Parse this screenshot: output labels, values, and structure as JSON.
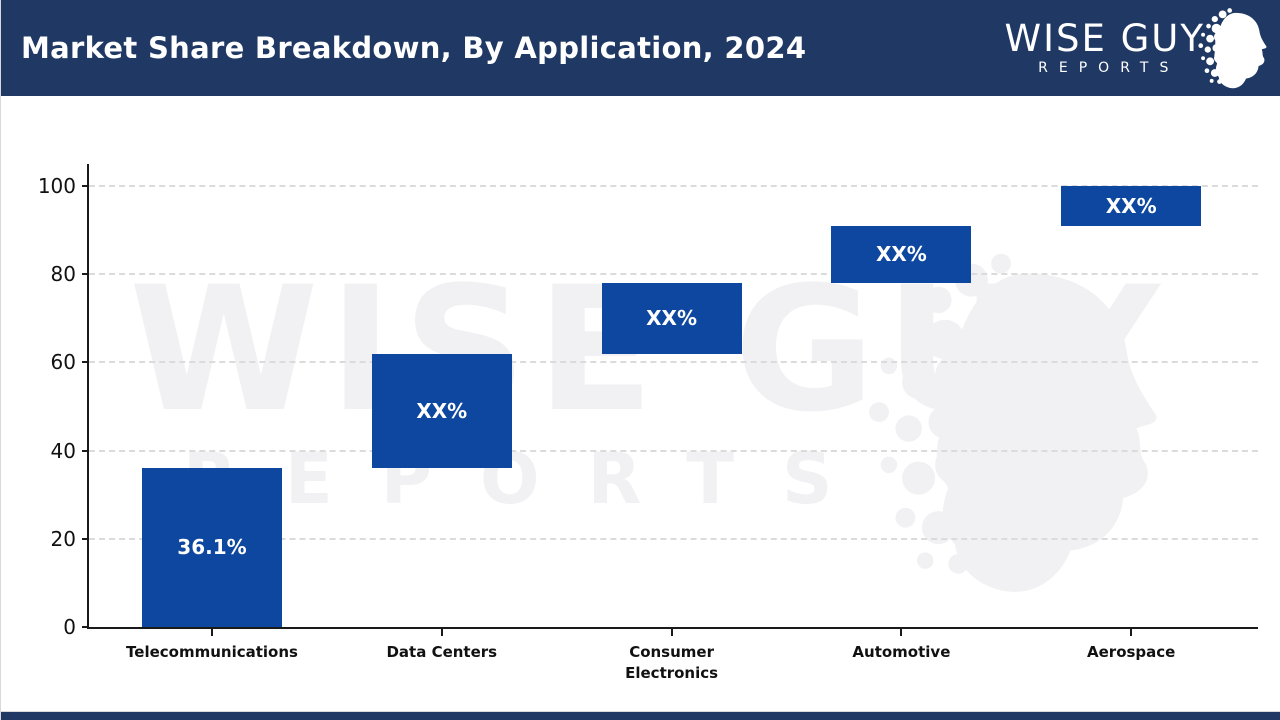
{
  "header": {
    "title": "Market Share Breakdown, By Application, 2024",
    "logo_line1": "WISE GUY",
    "logo_line2": "REPORTS"
  },
  "watermark": {
    "line1": "WISE GUY",
    "line2": "REPORTS"
  },
  "colors": {
    "header_bg": "#1F3864",
    "bar_blue": "#0D47A0",
    "watermark_gray": "#F1F1F3",
    "gridline_gray": "#DBDBDB",
    "axis_black": "#1A1A1A"
  },
  "chart_data": {
    "type": "bar",
    "subtype": "waterfall",
    "title": "Market Share Breakdown, By Application, 2024",
    "categories": [
      "Telecommunications",
      "Data Centers",
      "Consumer Electronics",
      "Automotive",
      "Aerospace"
    ],
    "segments": [
      {
        "category": "Telecommunications",
        "display": "Telecommunications",
        "start": 0,
        "end": 36.1,
        "label": "36.1%"
      },
      {
        "category": "Data Centers",
        "display": "Data Centers",
        "start": 36.1,
        "end": 62,
        "label": "XX%"
      },
      {
        "category": "Consumer Electronics",
        "display": "Consumer\nElectronics",
        "start": 62,
        "end": 78,
        "label": "XX%"
      },
      {
        "category": "Automotive",
        "display": "Automotive",
        "start": 78,
        "end": 91,
        "label": "XX%"
      },
      {
        "category": "Aerospace",
        "display": "Aerospace",
        "start": 91,
        "end": 100,
        "label": "XX%"
      }
    ],
    "yticks": [
      0,
      20,
      40,
      60,
      80,
      100
    ],
    "ylim": [
      0,
      105
    ],
    "xlabel": "",
    "ylabel": "",
    "grid": "dashed-horizontal",
    "legend": "none",
    "bar_value_position": "center"
  }
}
